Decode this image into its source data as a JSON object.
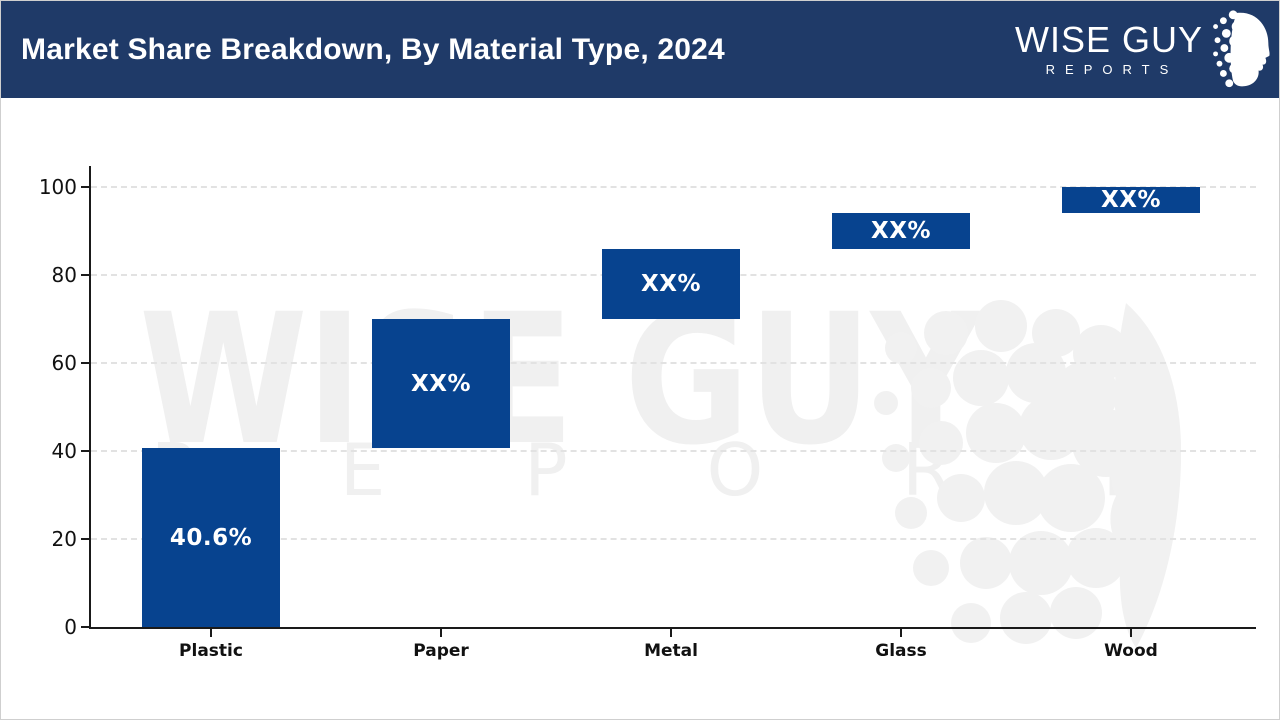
{
  "header": {
    "title": "Market Share Breakdown, By Material Type, 2024",
    "logo": {
      "wordmark": "WISE GUY",
      "subtitle": "REPORTS"
    }
  },
  "watermark": {
    "wordmark": "WISE GUY",
    "subtitle": "R E P O R T S"
  },
  "colors": {
    "header_bg": "#1f3a68",
    "bar": "#07438f",
    "grid": "#e2e2e2",
    "axis": "#1a1a1a",
    "bar_label_text": "#ffffff",
    "watermark": "#f0f0f0"
  },
  "chart_data": {
    "type": "bar",
    "subtype": "waterfall",
    "title": "Market Share Breakdown, By Material Type, 2024",
    "categories": [
      "Plastic",
      "Paper",
      "Metal",
      "Glass",
      "Wood"
    ],
    "series": [
      {
        "name": "Market share (%)",
        "segments": [
          {
            "category": "Plastic",
            "start": 0,
            "end": 40.6,
            "label": "40.6%"
          },
          {
            "category": "Paper",
            "start": 40.6,
            "end": 70,
            "label": "XX%"
          },
          {
            "category": "Metal",
            "start": 70,
            "end": 86,
            "label": "XX%"
          },
          {
            "category": "Glass",
            "start": 86,
            "end": 94,
            "label": "XX%"
          },
          {
            "category": "Wood",
            "start": 94,
            "end": 100,
            "label": "XX%"
          }
        ]
      }
    ],
    "yticks": [
      0,
      20,
      40,
      60,
      80,
      100
    ],
    "ylim": [
      0,
      105
    ],
    "xlabel": "",
    "ylabel": "",
    "grid": "horizontal-dashed",
    "legend": "none"
  }
}
